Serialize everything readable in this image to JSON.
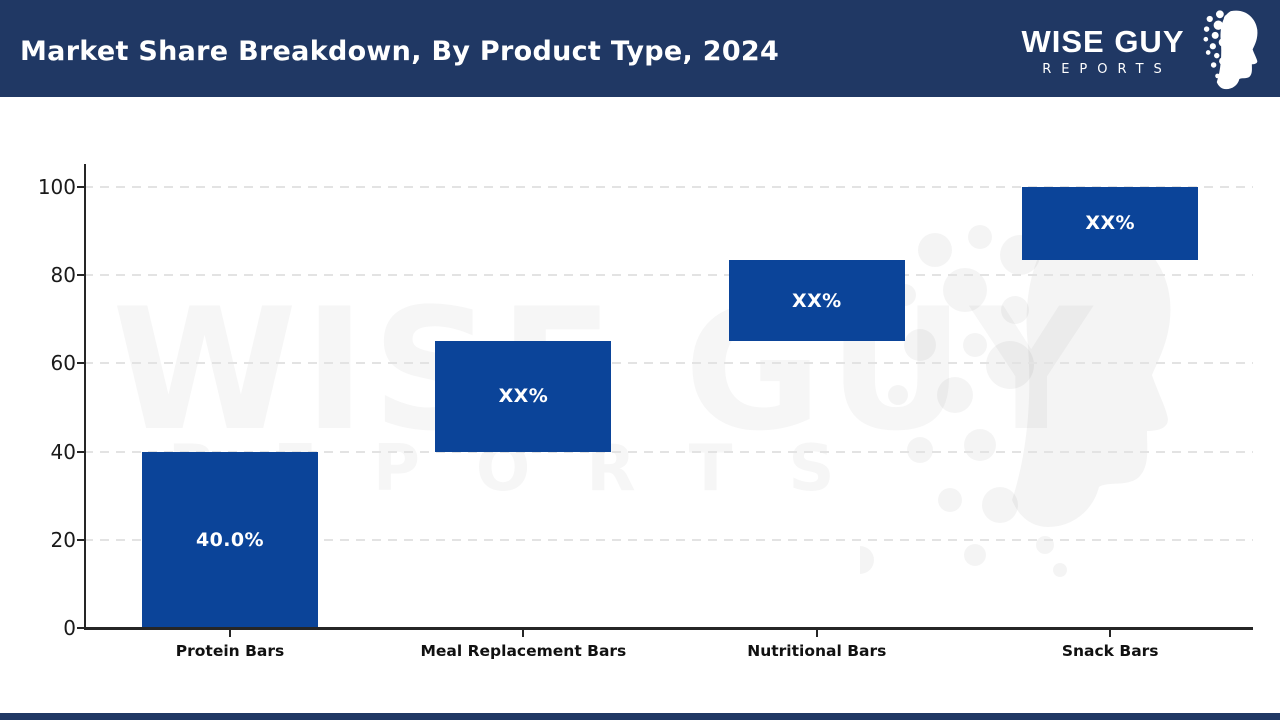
{
  "header": {
    "title": "Market Share Breakdown, By Product Type, 2024",
    "logo_line1": "WISE GUY",
    "logo_line2": "REPORTS",
    "bg_color": "#203864"
  },
  "chart_data": {
    "type": "bar",
    "subtype": "waterfall",
    "title": "Market Share Breakdown, By Product Type, 2024",
    "categories": [
      "Protein Bars",
      "Meal Replacement Bars",
      "Nutritional Bars",
      "Snack Bars"
    ],
    "segments": [
      {
        "category": "Protein Bars",
        "start": 0,
        "end": 40,
        "label": "40.0%"
      },
      {
        "category": "Meal Replacement Bars",
        "start": 40,
        "end": 65,
        "label": "XX%"
      },
      {
        "category": "Nutritional Bars",
        "start": 65,
        "end": 83.5,
        "label": "XX%"
      },
      {
        "category": "Snack Bars",
        "start": 83.5,
        "end": 100,
        "label": "XX%"
      }
    ],
    "y_ticks": [
      0,
      20,
      40,
      60,
      80,
      100
    ],
    "ylim": [
      0,
      105
    ],
    "xlabel": "",
    "ylabel": "",
    "grid": "horizontal-dashed",
    "legend": "none",
    "bar_color": "#0B4499",
    "bar_label_color": "#ffffff",
    "axis_color": "#262626",
    "gridline_color": "#e3e3e3"
  },
  "watermark": {
    "line1": "WISE GUY",
    "line2": "REPORTS"
  }
}
